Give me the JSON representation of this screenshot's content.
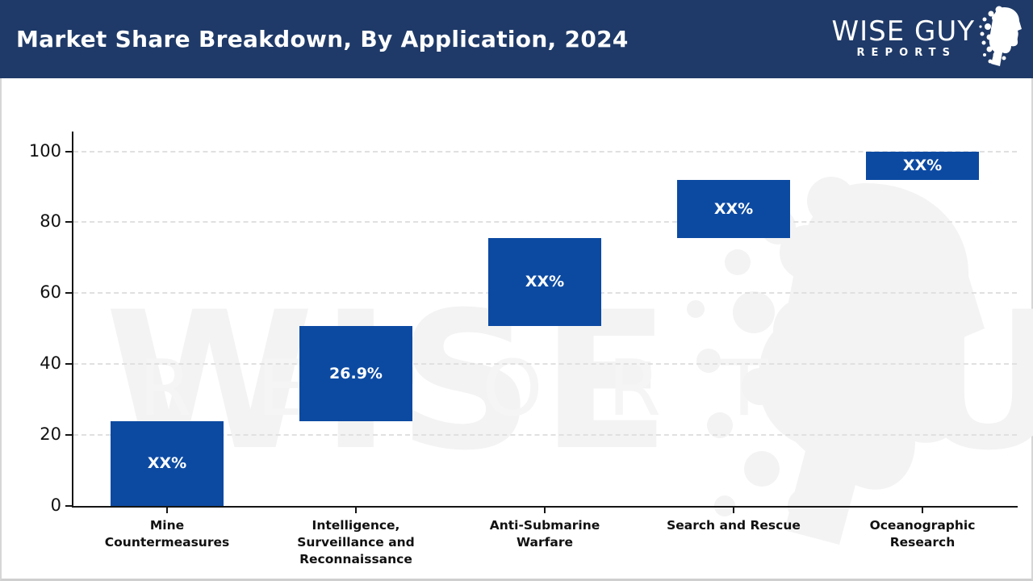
{
  "header": {
    "title": "Market Share Breakdown, By Application, 2024",
    "logo": {
      "line1": "WISE GUY",
      "line2": "REPORTS"
    }
  },
  "watermark": {
    "line1": "WISE GUY",
    "line2": "REPORTS"
  },
  "colors": {
    "header_bg": "#1f3a68",
    "bar": "#0c4aa2",
    "bar_label": "#ffffff",
    "grid": "#e0e0e0",
    "axis": "#151515",
    "watermark": "#f3f3f3",
    "panel_border": "#d6d6d6"
  },
  "chart_data": {
    "type": "bar",
    "subtype": "waterfall-stacked-segments",
    "title": "Market Share Breakdown, By Application, 2024",
    "xlabel": "",
    "ylabel": "",
    "ylim": [
      0,
      105
    ],
    "y_ticks": [
      0,
      20,
      40,
      60,
      80,
      100
    ],
    "grid": "horizontal-dashed",
    "legend": "none",
    "categories": [
      [
        "Mine",
        "Countermeasures"
      ],
      [
        "Intelligence,",
        "Surveillance and",
        "Reconnaissance"
      ],
      [
        "Anti-Submarine",
        "Warfare"
      ],
      [
        "Search and Rescue"
      ],
      [
        "Oceanographic",
        "Research"
      ]
    ],
    "segments": [
      {
        "category": "Mine Countermeasures",
        "start": 0,
        "end": 23.9,
        "label": "XX%"
      },
      {
        "category": "Intelligence, Surveillance and Reconnaissance",
        "start": 23.9,
        "end": 50.8,
        "label": "26.9%"
      },
      {
        "category": "Anti-Submarine Warfare",
        "start": 50.8,
        "end": 75.6,
        "label": "XX%"
      },
      {
        "category": "Search and Rescue",
        "start": 75.6,
        "end": 92.0,
        "label": "XX%"
      },
      {
        "category": "Oceanographic Research",
        "start": 92.0,
        "end": 100.0,
        "label": "XX%"
      }
    ]
  }
}
